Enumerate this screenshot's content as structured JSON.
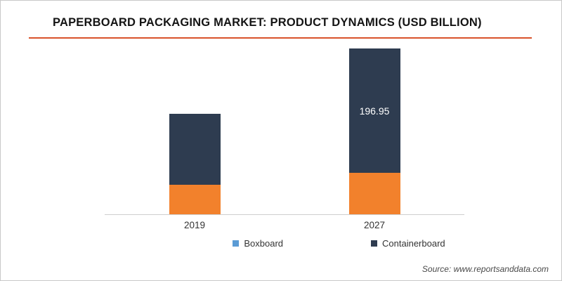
{
  "source": "Source: www.reportsanddata.com",
  "chart_data": {
    "type": "bar",
    "stacked": true,
    "title": "PAPERBOARD PACKAGING MARKET: PRODUCT DYNAMICS (USD BILLION)",
    "title_underline_color": "#d9532b",
    "categories": [
      "2019",
      "2027"
    ],
    "series": [
      {
        "name": "Boxboard",
        "color": "#f2812c",
        "values": [
          47,
          65
        ]
      },
      {
        "name": "Containerboard",
        "color": "#2e3c50",
        "values": [
          112,
          196.95
        ]
      }
    ],
    "data_labels": [
      {
        "category": "2027",
        "series": "Containerboard",
        "text": "196.95"
      }
    ],
    "legend": [
      {
        "label": "Boxboard",
        "marker": "#5b9bd5"
      },
      {
        "label": "Containerboard",
        "marker": "#2e3c50"
      }
    ],
    "legend_position": "bottom",
    "xlabel": "",
    "ylabel": "",
    "ylim": [
      0,
      262
    ],
    "grid": false,
    "axis_color": "#cfcfcf"
  }
}
